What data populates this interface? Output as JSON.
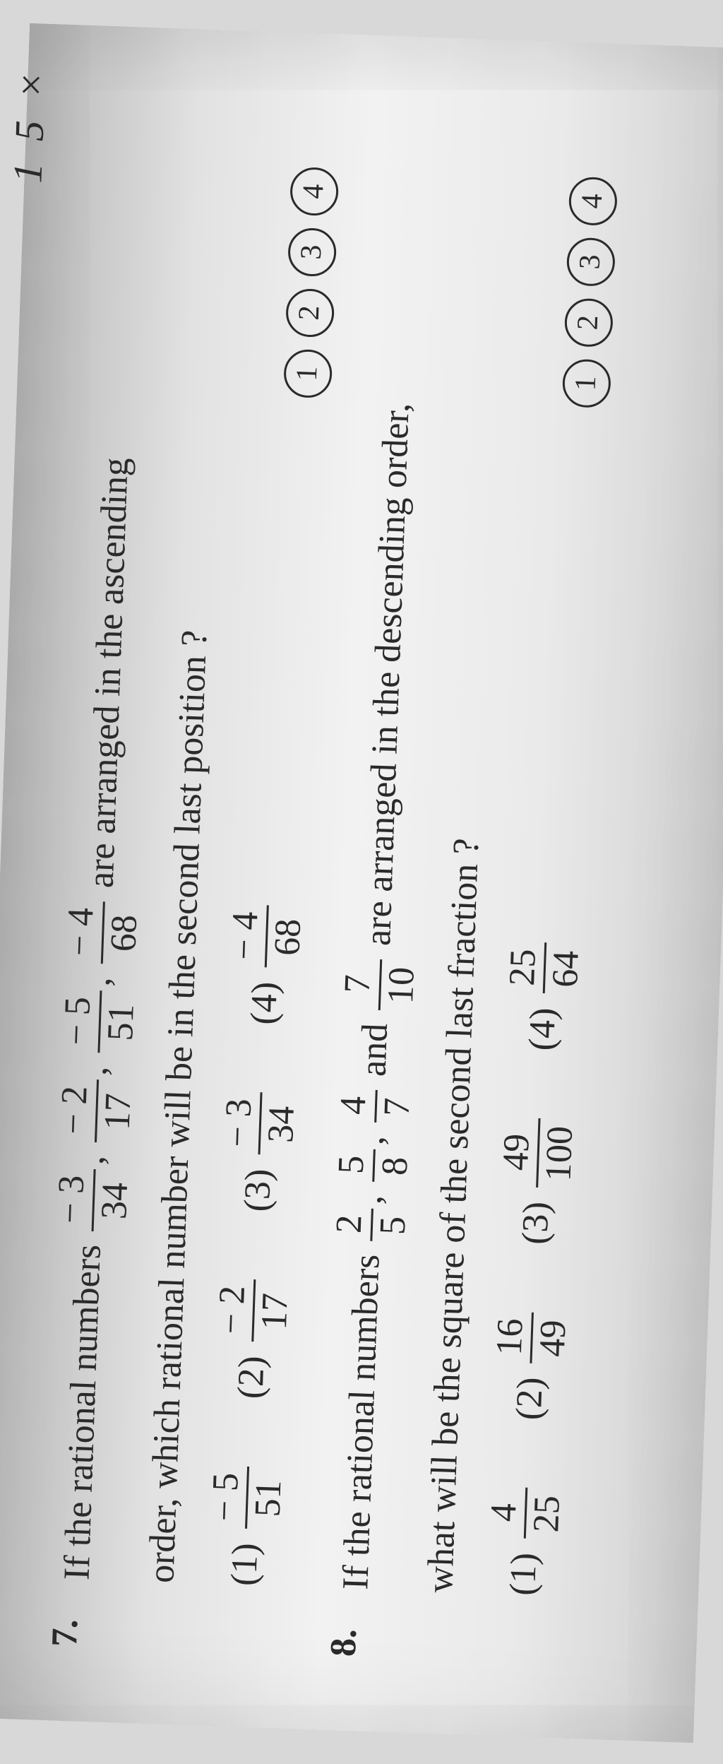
{
  "scribble": "1  5  ×",
  "q7": {
    "num": "7.",
    "stem_a": "If the rational numbers ",
    "fr": [
      {
        "n": "− 3",
        "d": "34"
      },
      {
        "n": "− 2",
        "d": "17"
      },
      {
        "n": "− 5",
        "d": "51"
      },
      {
        "n": "− 4",
        "d": "68"
      }
    ],
    "stem_b": " are arranged in the ascending",
    "stem_c": "order, which rational number will be in the second last position ?",
    "opts": [
      {
        "lab": "(1)",
        "n": "− 5",
        "d": "51"
      },
      {
        "lab": "(2)",
        "n": "− 2",
        "d": "17"
      },
      {
        "lab": "(3)",
        "n": "− 3",
        "d": "34"
      },
      {
        "lab": "(4)",
        "n": "− 4",
        "d": "68"
      }
    ],
    "circles": [
      "1",
      "2",
      "3",
      "4"
    ]
  },
  "q8": {
    "num": "8.",
    "stem_a": "If the rational numbers ",
    "fr": [
      {
        "n": "2",
        "d": "5"
      },
      {
        "n": "5",
        "d": "8"
      },
      {
        "n": "4",
        "d": "7"
      },
      {
        "n": "7",
        "d": "10"
      }
    ],
    "stem_mid": " and ",
    "stem_b": " are arranged in the descending order,",
    "stem_c": "what will be the square of the second last fraction ?",
    "opts": [
      {
        "lab": "(1)",
        "n": "4",
        "d": "25"
      },
      {
        "lab": "(2)",
        "n": "16",
        "d": "49"
      },
      {
        "lab": "(3)",
        "n": "49",
        "d": "100"
      },
      {
        "lab": "(4)",
        "n": "25",
        "d": "64"
      }
    ],
    "circles": [
      "1",
      "2",
      "3",
      "4"
    ]
  }
}
